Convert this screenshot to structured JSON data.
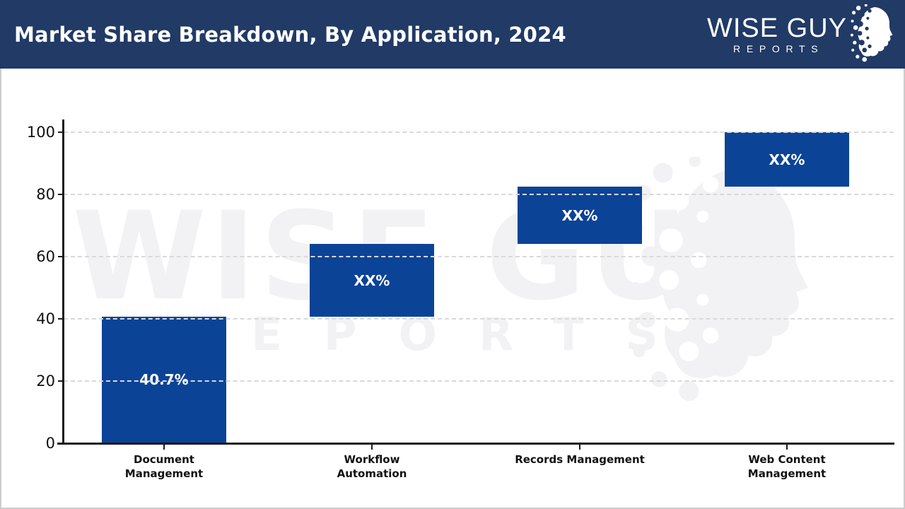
{
  "header": {
    "title": "Market Share Breakdown, By Application, 2024",
    "logo": {
      "name": "WISE GUY",
      "sub": "REPORTS"
    }
  },
  "watermark": {
    "line1": "WISE GUY",
    "line2": "REPORTS"
  },
  "chart_data": {
    "type": "bar",
    "subtype": "floating segment bars (market share breakdown, segments stack from 0 to 100)",
    "title": "Market Share Breakdown, By Application, 2024",
    "categories": [
      "Document Management",
      "Workflow Automation",
      "Records Management",
      "Web Content Management"
    ],
    "category_lines": [
      [
        "Document",
        "Management"
      ],
      [
        "Workflow",
        "Automation"
      ],
      [
        "Records Management"
      ],
      [
        "Web Content",
        "Management"
      ]
    ],
    "bars": [
      {
        "category": "Document Management",
        "label": "40.7%",
        "start": 0,
        "end": 40.7
      },
      {
        "category": "Workflow Automation",
        "label": "XX%",
        "start": 40.7,
        "end": 64
      },
      {
        "category": "Records Management",
        "label": "XX%",
        "start": 64,
        "end": 82.5
      },
      {
        "category": "Web Content Management",
        "label": "XX%",
        "start": 82.5,
        "end": 100
      }
    ],
    "xlabel": "",
    "ylabel": "",
    "ylim": [
      0,
      110
    ],
    "yticks": [
      0,
      20,
      40,
      60,
      80,
      100
    ],
    "grid": "horizontal dashed",
    "legend": "none",
    "colors": {
      "bar": "#0b4397",
      "bar_label": "#ffffff",
      "header_bg": "#213a66",
      "grid": "#d9d9d9",
      "axis": "#1a1a1a",
      "watermark": "#f2f2f4"
    }
  }
}
